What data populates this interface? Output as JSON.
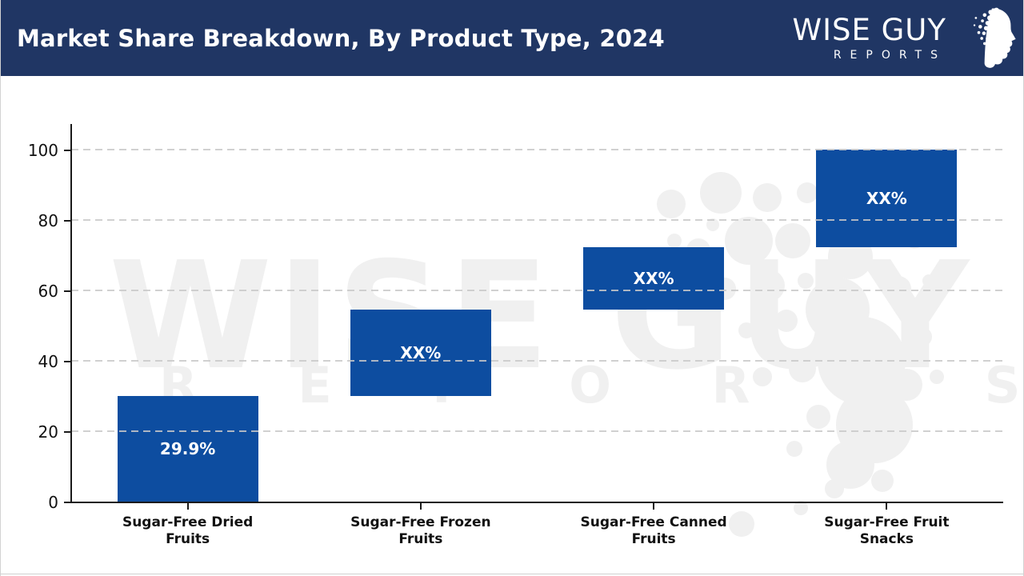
{
  "header": {
    "title": "Market Share Breakdown, By Product Type, 2024",
    "logo": {
      "name": "WISE GUY",
      "sub": "REPORTS"
    }
  },
  "watermark": {
    "line1": "WISE GUY",
    "line2": "R E P O R T S"
  },
  "colors": {
    "header_bg": "#203664",
    "bar_fill": "#0d4da0",
    "bar_label_text": "#ffffff",
    "axis_line": "#1a1a1a",
    "gridline": "#c9c9c9",
    "watermark_gray": "#f0f0f0",
    "frame_border": "#d2d2d2"
  },
  "chart_data": {
    "type": "bar",
    "subtype": "waterfall-stacked-percentage",
    "title": "Market Share Breakdown, By Product Type, 2024",
    "categories": [
      "Sugar-Free Dried Fruits",
      "Sugar-Free Frozen Fruits",
      "Sugar-Free Canned Fruits",
      "Sugar-Free Fruit Snacks"
    ],
    "category_display": [
      "Sugar-Free Dried\nFruits",
      "Sugar-Free Frozen\nFruits",
      "Sugar-Free Canned\nFruits",
      "Sugar-Free Fruit\nSnacks"
    ],
    "segments": [
      {
        "category": "Sugar-Free Dried Fruits",
        "start": 0,
        "end": 29.9,
        "value": 29.9,
        "value_label": "29.9%"
      },
      {
        "category": "Sugar-Free Frozen Fruits",
        "start": 29.9,
        "end": 54.6,
        "value": 24.7,
        "value_label": "XX%"
      },
      {
        "category": "Sugar-Free Canned Fruits",
        "start": 54.6,
        "end": 72.3,
        "value": 17.7,
        "value_label": "XX%"
      },
      {
        "category": "Sugar-Free Fruit Snacks",
        "start": 72.3,
        "end": 100,
        "value": 27.7,
        "value_label": "XX%"
      }
    ],
    "xlabel": "",
    "ylabel": "",
    "ylim": [
      0,
      100
    ],
    "yticks": [
      0,
      20,
      40,
      60,
      80,
      100
    ],
    "grid": "horizontal-dashed-drawn-over-bars",
    "legend": null
  }
}
